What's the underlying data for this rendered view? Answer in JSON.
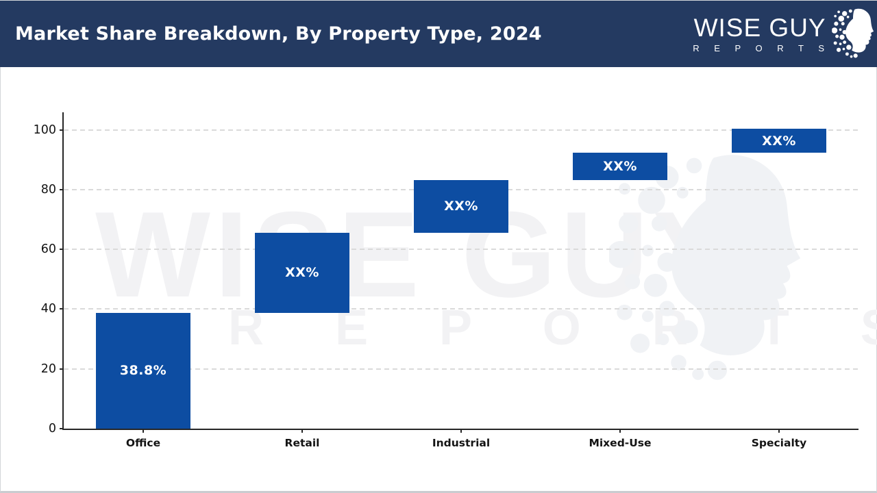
{
  "header": {
    "title": "Market Share Breakdown, By Property Type, 2024",
    "bg_color": "#243a61",
    "logo_line1": "WISE GUY",
    "logo_line2": "R E P O R T S"
  },
  "watermark": {
    "line1": "WISE GUY",
    "line2": "R E P O R T S"
  },
  "chart_data": {
    "type": "bar",
    "variant": "waterfall",
    "title": "Market Share Breakdown, By Property Type, 2024",
    "categories": [
      "Office",
      "Retail",
      "Industrial",
      "Mixed-Use",
      "Specialty"
    ],
    "segments": [
      {
        "category": "Office",
        "start": 0,
        "end": 38.8,
        "label": "38.8%"
      },
      {
        "category": "Retail",
        "start": 38.8,
        "end": 65.6,
        "label": "XX%"
      },
      {
        "category": "Industrial",
        "start": 65.6,
        "end": 83.2,
        "label": "XX%"
      },
      {
        "category": "Mixed-Use",
        "start": 83.2,
        "end": 92.3,
        "label": "XX%"
      },
      {
        "category": "Specialty",
        "start": 92.3,
        "end": 100.3,
        "label": "XX%"
      }
    ],
    "yticks": [
      0,
      20,
      40,
      60,
      80,
      100
    ],
    "ylim": [
      0,
      105.9
    ],
    "xlabel": "",
    "ylabel": "",
    "grid": "horizontal-dashed",
    "legend": "none",
    "bar_color": "#0d4da2",
    "bar_label_color": "#ffffff",
    "axis_color": "#262626",
    "grid_color": "#dadada"
  }
}
